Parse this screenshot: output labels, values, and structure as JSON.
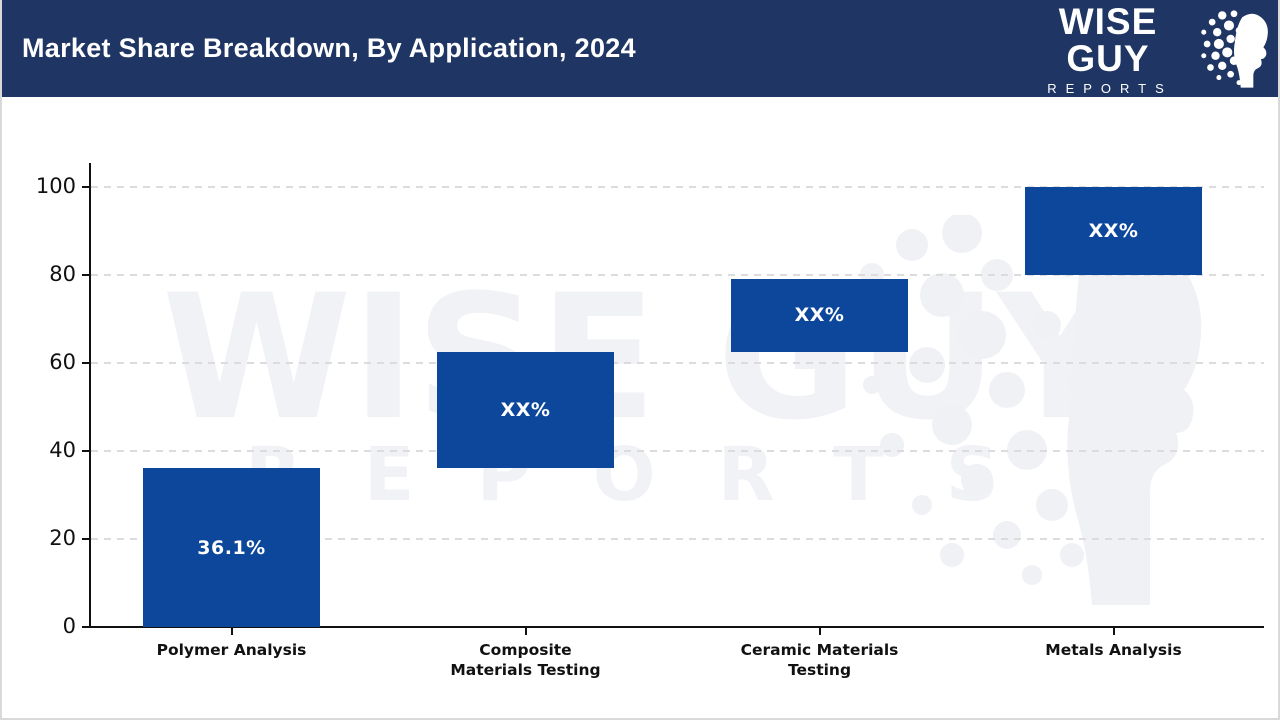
{
  "header": {
    "title": "Market Share Breakdown, By Application, 2024",
    "logo": {
      "wordmark": "WISE GUY",
      "reports": "REPORTS"
    }
  },
  "watermark": {
    "line1": "WISE GUY",
    "line2": "REPORTS"
  },
  "colors": {
    "header_bg": "#1f3564",
    "bar": "#0c479c",
    "bar_label_text": "#ffffff",
    "grid": "#dcdcdc",
    "axis": "#111111",
    "watermark": "#f1f2f5"
  },
  "chart_data": {
    "type": "bar",
    "subtype": "waterfall",
    "title": "Market Share Breakdown, By Application, 2024",
    "categories": [
      "Polymer Analysis",
      "Composite Materials Testing",
      "Ceramic Materials Testing",
      "Metals Analysis"
    ],
    "categories_lines": [
      [
        "Polymer Analysis"
      ],
      [
        "Composite",
        "Materials Testing"
      ],
      [
        "Ceramic Materials",
        "Testing"
      ],
      [
        "Metals Analysis"
      ]
    ],
    "bars": [
      {
        "category": "Polymer Analysis",
        "start": 0,
        "end": 36.1,
        "label": "36.1%"
      },
      {
        "category": "Composite Materials Testing",
        "start": 36.1,
        "end": 62.4,
        "label": "XX%"
      },
      {
        "category": "Ceramic Materials Testing",
        "start": 62.4,
        "end": 79.2,
        "label": "XX%"
      },
      {
        "category": "Metals Analysis",
        "start": 80,
        "end": 100,
        "label": "XX%"
      }
    ],
    "ylim": [
      0,
      100
    ],
    "yticks": [
      0,
      20,
      40,
      60,
      80,
      100
    ],
    "xlabel": "",
    "ylabel": "",
    "grid": "horizontal-dashed",
    "legend": "none"
  }
}
